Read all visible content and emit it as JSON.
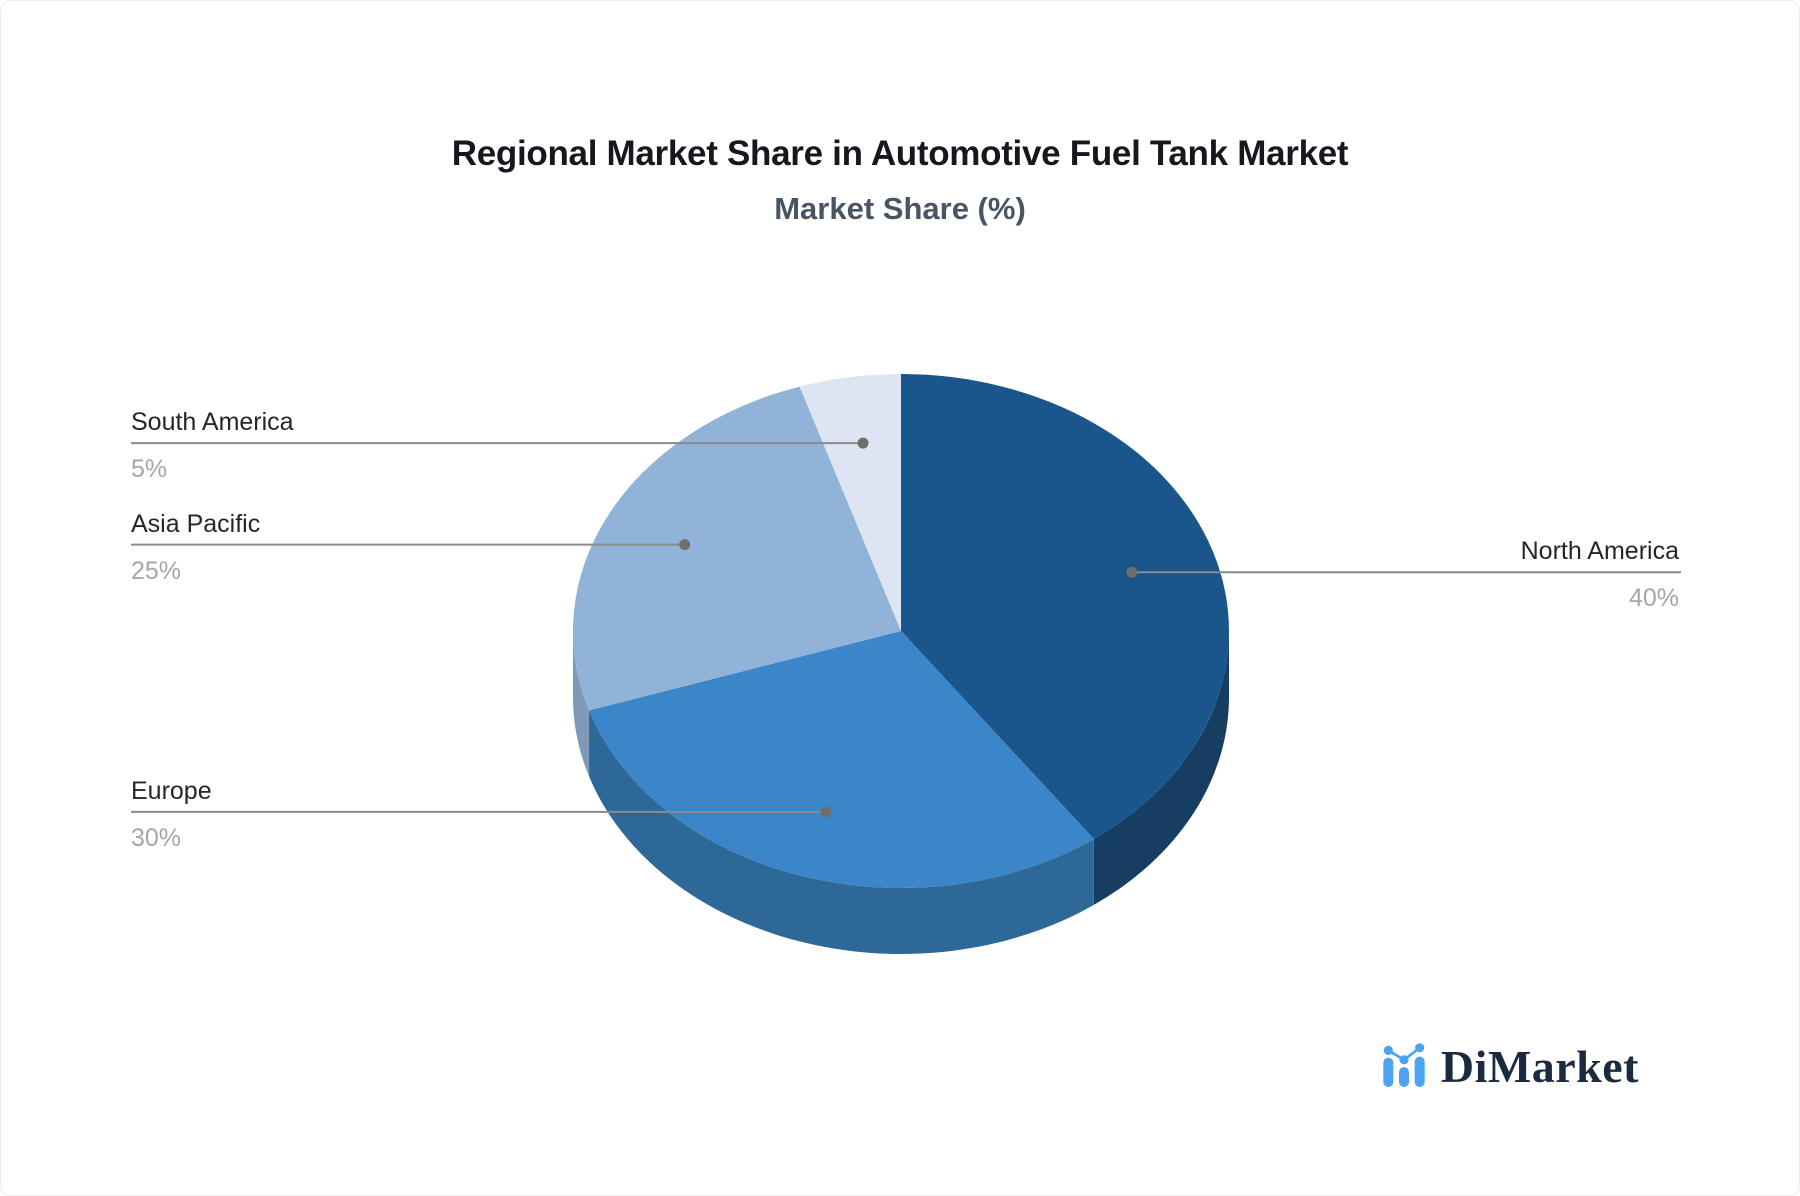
{
  "chart_data": {
    "type": "pie",
    "title": "Regional Market Share in Automotive Fuel Tank Market",
    "subtitle": "Market Share (%)",
    "unit": "%",
    "effect": "3d-extruded",
    "start_angle_deg": 0,
    "direction": "clockwise",
    "legend_position": "none",
    "label_style": "callout-lines",
    "labels": [
      "North America",
      "Europe",
      "Asia Pacific",
      "South America"
    ],
    "values": [
      40,
      30,
      25,
      5
    ],
    "display_values": [
      "40%",
      "30%",
      "25%",
      "5%"
    ],
    "colors": {
      "top": [
        "#1A568C",
        "#3A86C8",
        "#91B3D7",
        "#DCE5F1"
      ],
      "side": [
        "#153E62",
        "#2D6898",
        "#7E9AB8",
        "#B9C7DC"
      ]
    },
    "callout": {
      "line_color": "#8A8A8A",
      "dot_color": "#6E6E6E",
      "name_color": "#262626",
      "value_color": "#A6A6A6"
    }
  },
  "branding": {
    "logo_text": "DiMarket",
    "text_color": "#1B2B3F",
    "accent_color": "#4DA3F2"
  }
}
